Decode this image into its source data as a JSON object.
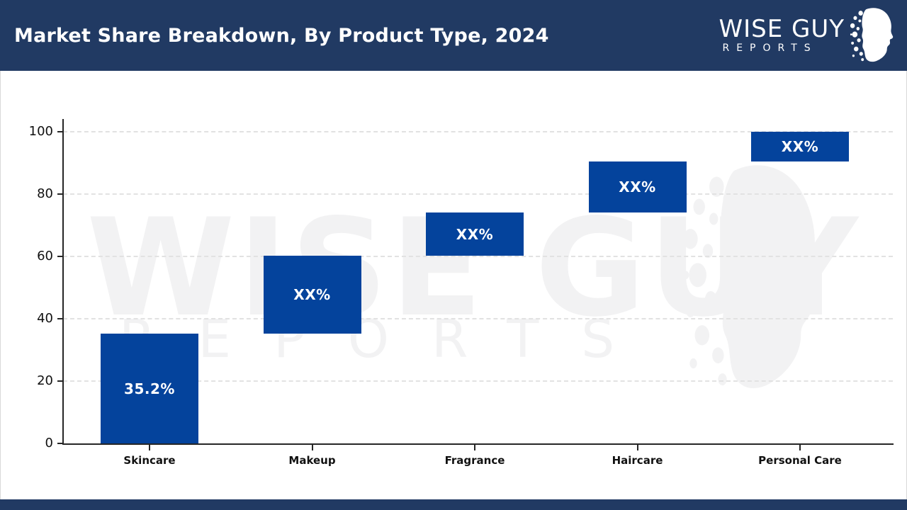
{
  "header": {
    "title": "Market Share Breakdown, By Product Type, 2024",
    "logo": {
      "line1": "WISE GUY",
      "line2": "REPORTS",
      "head_icon": "dotted-face-profile"
    }
  },
  "watermark": {
    "line1": "WISE GUY",
    "line2": "REPORTS",
    "head_icon": "dotted-face-profile"
  },
  "colors": {
    "header_bg": "#213a63",
    "footer_bg": "#213a63",
    "bar": "#04439c",
    "bar_label_text": "#ffffff",
    "gridline": "#e2e2e2",
    "axis": "#262626",
    "watermark": "#f2f2f3",
    "title_text": "#ffffff"
  },
  "chart_data": {
    "type": "bar",
    "variant": "waterfall",
    "title": "Market Share Breakdown, By Product Type, 2024",
    "categories": [
      "Skincare",
      "Makeup",
      "Fragrance",
      "Haircare",
      "Personal Care"
    ],
    "segments": [
      {
        "category": "Skincare",
        "start": 0,
        "end": 35.2,
        "label": "35.2%"
      },
      {
        "category": "Makeup",
        "start": 35.2,
        "end": 60.2,
        "label": "XX%"
      },
      {
        "category": "Fragrance",
        "start": 60.2,
        "end": 74,
        "label": "XX%"
      },
      {
        "category": "Haircare",
        "start": 74,
        "end": 90.5,
        "label": "XX%"
      },
      {
        "category": "Personal Care",
        "start": 90.5,
        "end": 100,
        "label": "XX%"
      }
    ],
    "xlabel": "",
    "ylabel": "",
    "yticks": [
      0,
      20,
      40,
      60,
      80,
      100
    ],
    "ylim": [
      0,
      105
    ],
    "grid": "horizontal-dashed",
    "legend_position": "none"
  }
}
